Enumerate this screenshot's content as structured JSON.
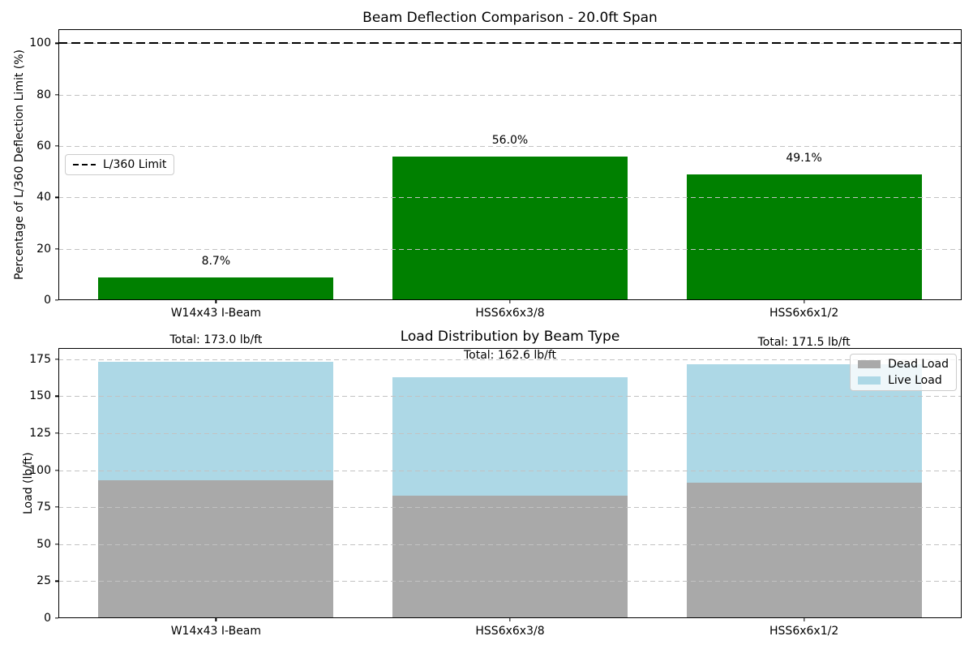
{
  "figure": {
    "background": "#ffffff"
  },
  "chart_data": [
    {
      "type": "bar",
      "title": "Beam Deflection Comparison - 20.0ft Span",
      "xlabel": "",
      "ylabel": "Percentage of L/360 Deflection Limit (%)",
      "categories": [
        "W14x43 I-Beam",
        "HSS6x6x3/8",
        "HSS6x6x1/2"
      ],
      "values": [
        8.7,
        56.0,
        49.1
      ],
      "bar_labels": [
        "8.7%",
        "56.0%",
        "49.1%"
      ],
      "bar_color": "#008000",
      "ylim": [
        0,
        105.5
      ],
      "yticks": [
        0,
        20,
        40,
        60,
        80,
        100
      ],
      "grid": true,
      "grid_style": "dashed",
      "ref_line": {
        "y": 100,
        "color": "#000000",
        "style": "dashed",
        "label": "L/360 Limit"
      },
      "legend": {
        "position": "center-left",
        "entries": [
          {
            "label": "L/360 Limit",
            "swatch": "dashed-line",
            "color": "#000000"
          }
        ]
      }
    },
    {
      "type": "stacked-bar",
      "title": "Load Distribution by Beam Type",
      "xlabel": "",
      "ylabel": "Load (lb/ft)",
      "categories": [
        "W14x43 I-Beam",
        "HSS6x6x3/8",
        "HSS6x6x1/2"
      ],
      "series": [
        {
          "name": "Dead Load",
          "color": "#a9a9a9",
          "values": [
            93.0,
            82.6,
            91.5
          ]
        },
        {
          "name": "Live Load",
          "color": "#add8e6",
          "values": [
            80.0,
            80.0,
            80.0
          ]
        }
      ],
      "totals": [
        173.0,
        162.6,
        171.5
      ],
      "total_labels": [
        "Total: 173.0 lb/ft",
        "Total: 162.6 lb/ft",
        "Total: 171.5 lb/ft"
      ],
      "ylim": [
        0,
        182.5
      ],
      "yticks": [
        0,
        25,
        50,
        75,
        100,
        125,
        150,
        175
      ],
      "grid": true,
      "grid_style": "dashed",
      "legend": {
        "position": "top-right",
        "entries": [
          {
            "label": "Dead Load",
            "swatch": "box",
            "color": "#a9a9a9"
          },
          {
            "label": "Live Load",
            "swatch": "box",
            "color": "#add8e6"
          }
        ]
      }
    }
  ]
}
